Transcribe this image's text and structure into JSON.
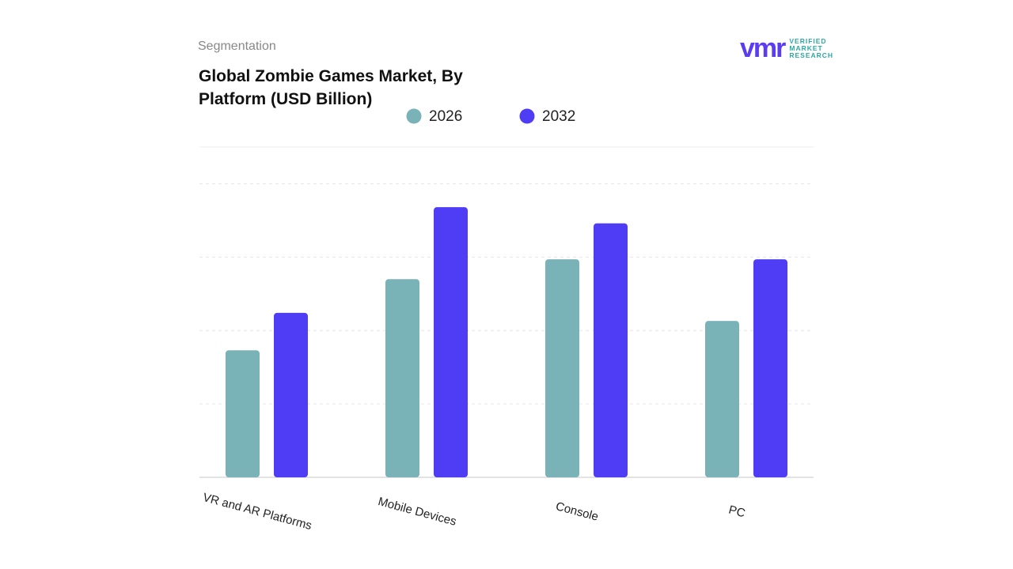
{
  "brand": {
    "mark": "vmr",
    "name": [
      "VERIFIED",
      "MARKET",
      "RESEARCH"
    ]
  },
  "chart_data": {
    "type": "bar",
    "label": "Segmentation",
    "title": "Global Zombie Games Market, By Platform (USD Billion)",
    "categories": [
      "VR and AR Platforms",
      "Mobile Devices",
      "Console",
      "PC"
    ],
    "series": [
      {
        "name": "2026",
        "color": "#7ab3b7",
        "values": [
          1.73,
          2.7,
          2.97,
          2.13
        ]
      },
      {
        "name": "2032",
        "color": "#4f3df5",
        "values": [
          2.24,
          3.68,
          3.46,
          2.97
        ]
      }
    ],
    "ylim": [
      0,
      4.5
    ],
    "yticks": [
      1,
      2,
      3,
      4
    ],
    "grid": true
  }
}
